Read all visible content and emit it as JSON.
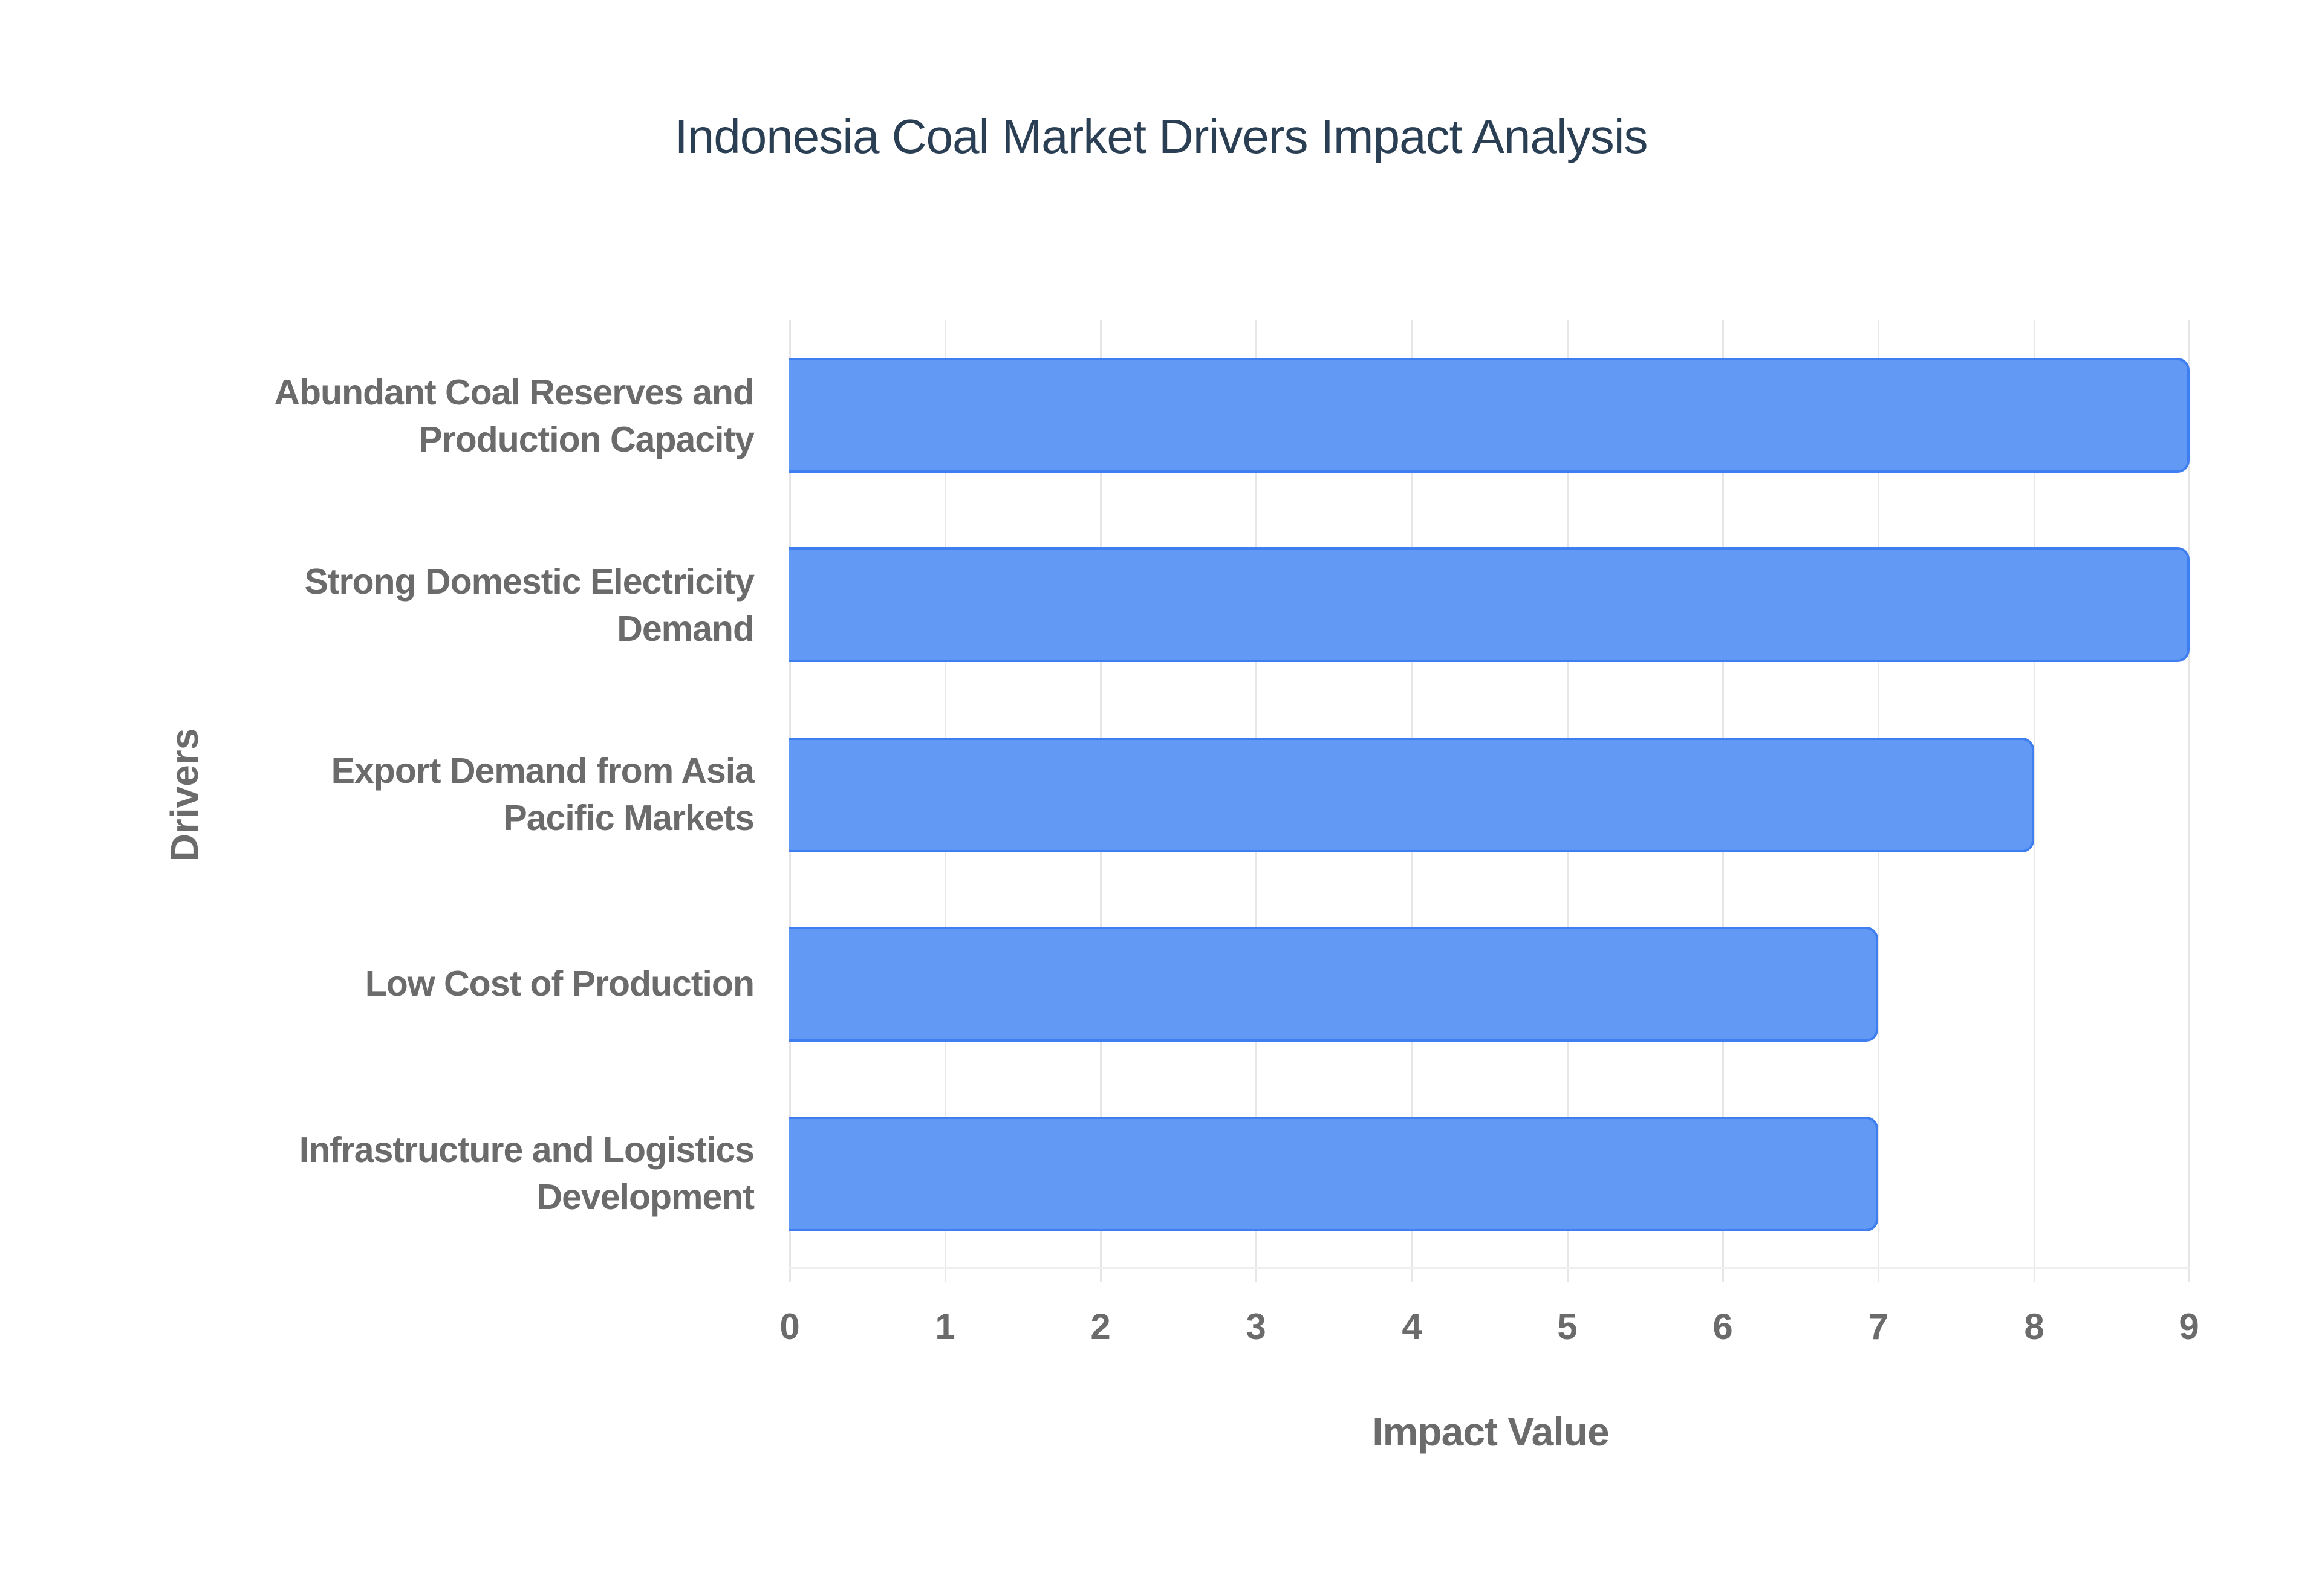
{
  "chart_data": {
    "type": "bar",
    "orientation": "horizontal",
    "title": "Indonesia Coal Market Drivers Impact Analysis",
    "xlabel": "Impact Value",
    "ylabel": "Drivers",
    "categories": [
      "Abundant Coal Reserves and Production Capacity",
      "Strong Domestic Electricity Demand",
      "Export Demand from Asia Pacific Markets",
      "Low Cost of Production",
      "Infrastructure and Logistics Development"
    ],
    "values": [
      9,
      9,
      8,
      7,
      7
    ],
    "xlim": [
      0,
      9
    ],
    "xticks": [
      "0",
      "1",
      "2",
      "3",
      "4",
      "5",
      "6",
      "7",
      "8",
      "9"
    ],
    "grid": true,
    "legend": "none",
    "bar_color": "#6299f5",
    "bar_border_color": "#3f7ef0"
  },
  "labels": {
    "cat0_line1": "Abundant Coal Reserves and",
    "cat0_line2": "Production Capacity",
    "cat1_line1": "Strong Domestic Electricity",
    "cat1_line2": "Demand",
    "cat2_line1": "Export Demand from Asia",
    "cat2_line2": "Pacific Markets",
    "cat3_line1": "Low Cost of Production",
    "cat4_line1": "Infrastructure and Logistics",
    "cat4_line2": "Development"
  }
}
